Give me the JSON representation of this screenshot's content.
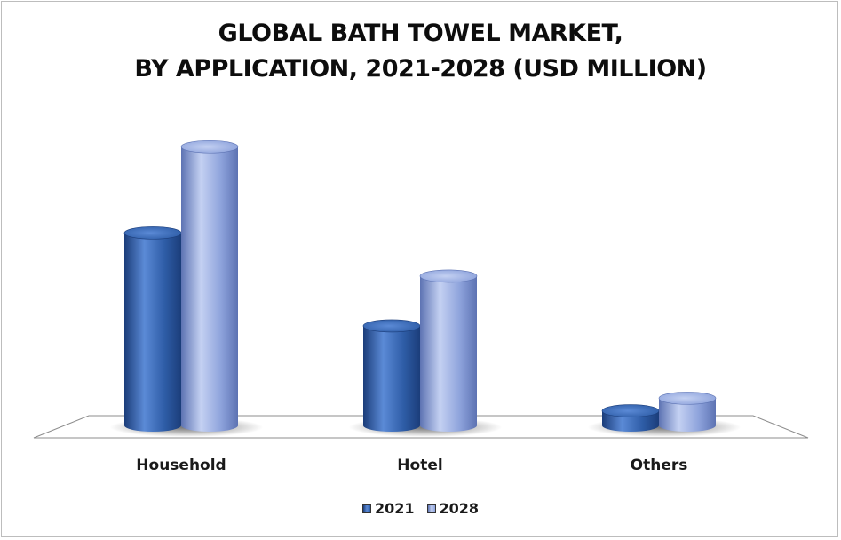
{
  "chart_data": {
    "type": "bar",
    "title_lines": [
      "GLOBAL BATH TOWEL MARKET,",
      "BY APPLICATION, 2021-2028 (USD MILLION)"
    ],
    "categories": [
      "Household",
      "Hotel",
      "Others"
    ],
    "series": [
      {
        "name": "2021",
        "values": [
          290,
          150,
          22
        ],
        "color": "#2f5ea8",
        "light": "#5b8ad6",
        "dark": "#1b3d7a"
      },
      {
        "name": "2028",
        "values": [
          420,
          225,
          41
        ],
        "color": "#8ea3dc",
        "light": "#c4d1f2",
        "dark": "#5d73b3"
      }
    ],
    "ylim": [
      0,
      450
    ],
    "grid": false,
    "legend_position": "bottom",
    "bar_shape": "cylinder-3d"
  }
}
